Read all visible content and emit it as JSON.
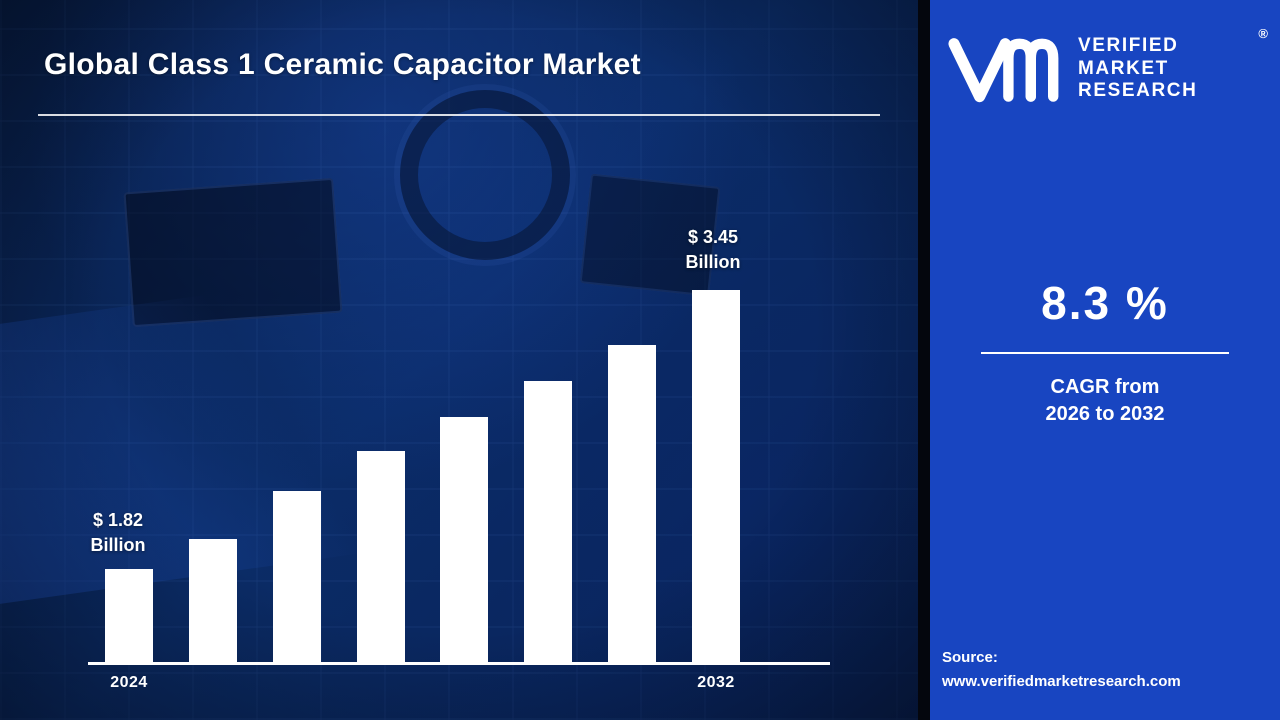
{
  "title": "Global Class 1 Ceramic Capacitor Market",
  "chart_data": {
    "type": "bar",
    "bar_count": 8,
    "values": [
      1.82,
      2.0,
      2.28,
      2.51,
      2.71,
      2.92,
      3.13,
      3.45
    ],
    "x_tick_labels": [
      "2024",
      "2032"
    ],
    "start_label": {
      "amount": "$ 1.82",
      "unit": "Billion"
    },
    "end_label": {
      "amount": "$ 3.45",
      "unit": "Billion"
    },
    "ylim": [
      1.28,
      3.45
    ],
    "bar_color": "#ffffff",
    "axis_color": "#ffffff",
    "grid": false,
    "legend": false,
    "title": "Global Class 1 Ceramic Capacitor Market"
  },
  "brand": {
    "lines": [
      "VERIFIED",
      "MARKET",
      "RESEARCH"
    ],
    "registered": "®"
  },
  "stat": {
    "value": "8.3 %",
    "caption_line1": "CAGR from",
    "caption_line2": "2026 to 2032"
  },
  "source": {
    "label": "Source:",
    "url": "www.verifiedmarketresearch.com"
  },
  "colors": {
    "panel_blue": "#1845c1",
    "background_navy": "#0a2450",
    "text_white": "#ffffff"
  }
}
